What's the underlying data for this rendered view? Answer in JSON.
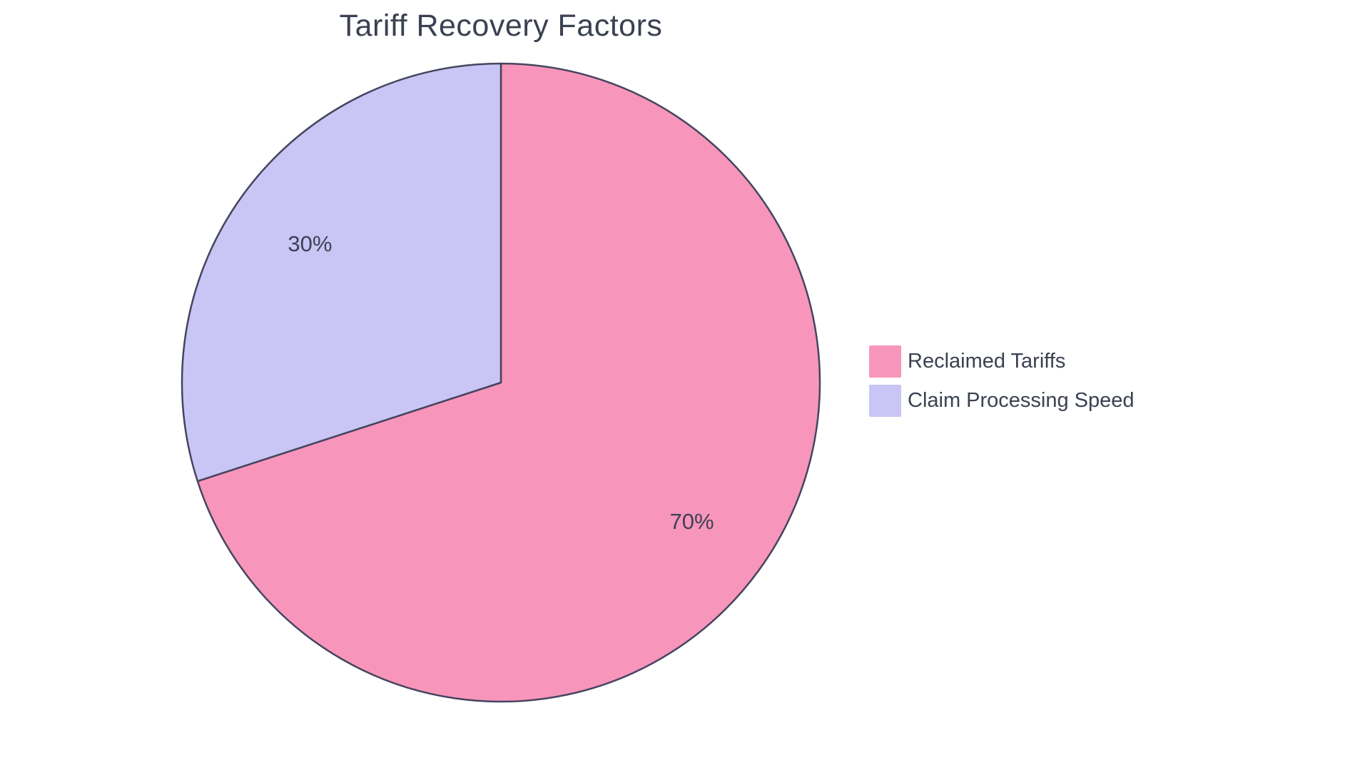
{
  "chart_data": {
    "type": "pie",
    "title": "Tariff Recovery Factors",
    "labels": [
      "Reclaimed Tariffs",
      "Claim Processing Speed"
    ],
    "values": [
      70,
      30
    ],
    "percent_labels": [
      "70%",
      "30%"
    ],
    "colors": [
      "#F895BB",
      "#C9C5F4"
    ],
    "stroke_color": "#45455F",
    "text_color": "#3b4152",
    "start_angle_deg": 0,
    "direction": "clockwise",
    "legend_position": "right",
    "grid": false
  }
}
